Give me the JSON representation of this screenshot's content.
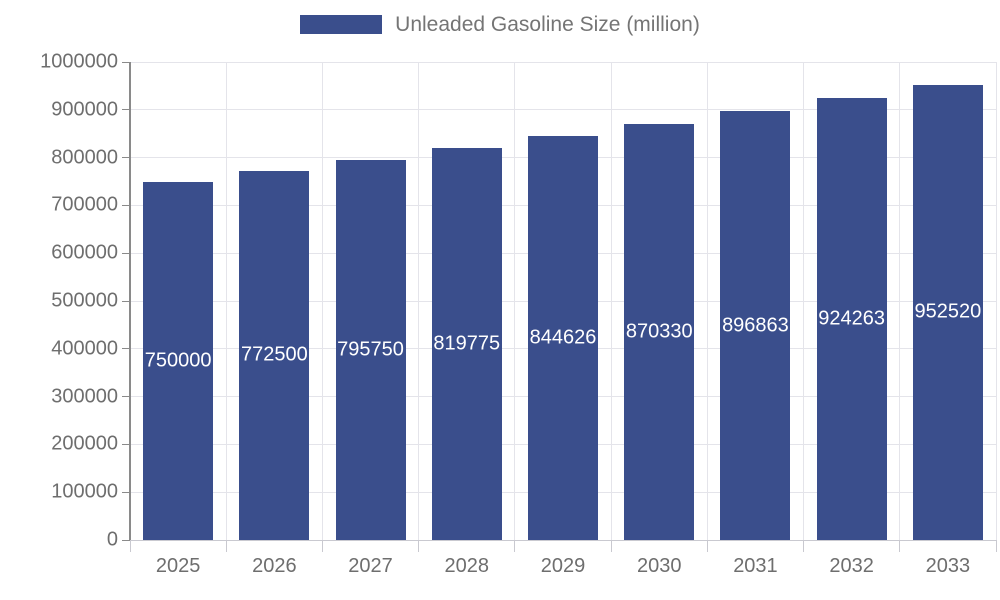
{
  "legend": {
    "label": "Unleaded Gasoline Size (million)"
  },
  "colors": {
    "background": "#FFFFFF",
    "bar": "#3A4E8C",
    "grid": "#E4E4EA",
    "y_axis": "#8A8A8A",
    "x_axis": "#C9C9D0",
    "tick_label": "#6E6E6E",
    "legend_text": "#757575",
    "bar_label": "#FFFFFF"
  },
  "chart_data": {
    "type": "bar",
    "title": "",
    "xlabel": "",
    "ylabel": "",
    "categories": [
      "2025",
      "2026",
      "2027",
      "2028",
      "2029",
      "2030",
      "2031",
      "2032",
      "2033"
    ],
    "series": [
      {
        "name": "Unleaded Gasoline Size (million)",
        "values": [
          750000,
          772500,
          795750,
          819775,
          844626,
          870330,
          896863,
          924263,
          952520
        ]
      }
    ],
    "value_labels": [
      "750000",
      "772500",
      "795750",
      "819775",
      "844626",
      "870330",
      "896863",
      "924263",
      "952520"
    ],
    "ylim": [
      0,
      1000000
    ],
    "ytick_step": 100000,
    "ytick_labels": [
      "0",
      "100000",
      "200000",
      "300000",
      "400000",
      "500000",
      "600000",
      "700000",
      "800000",
      "900000",
      "1000000"
    ],
    "grid": true,
    "vertical_grid": true,
    "legend_position": "top-center",
    "bar_labels_position": "inside-middle"
  }
}
